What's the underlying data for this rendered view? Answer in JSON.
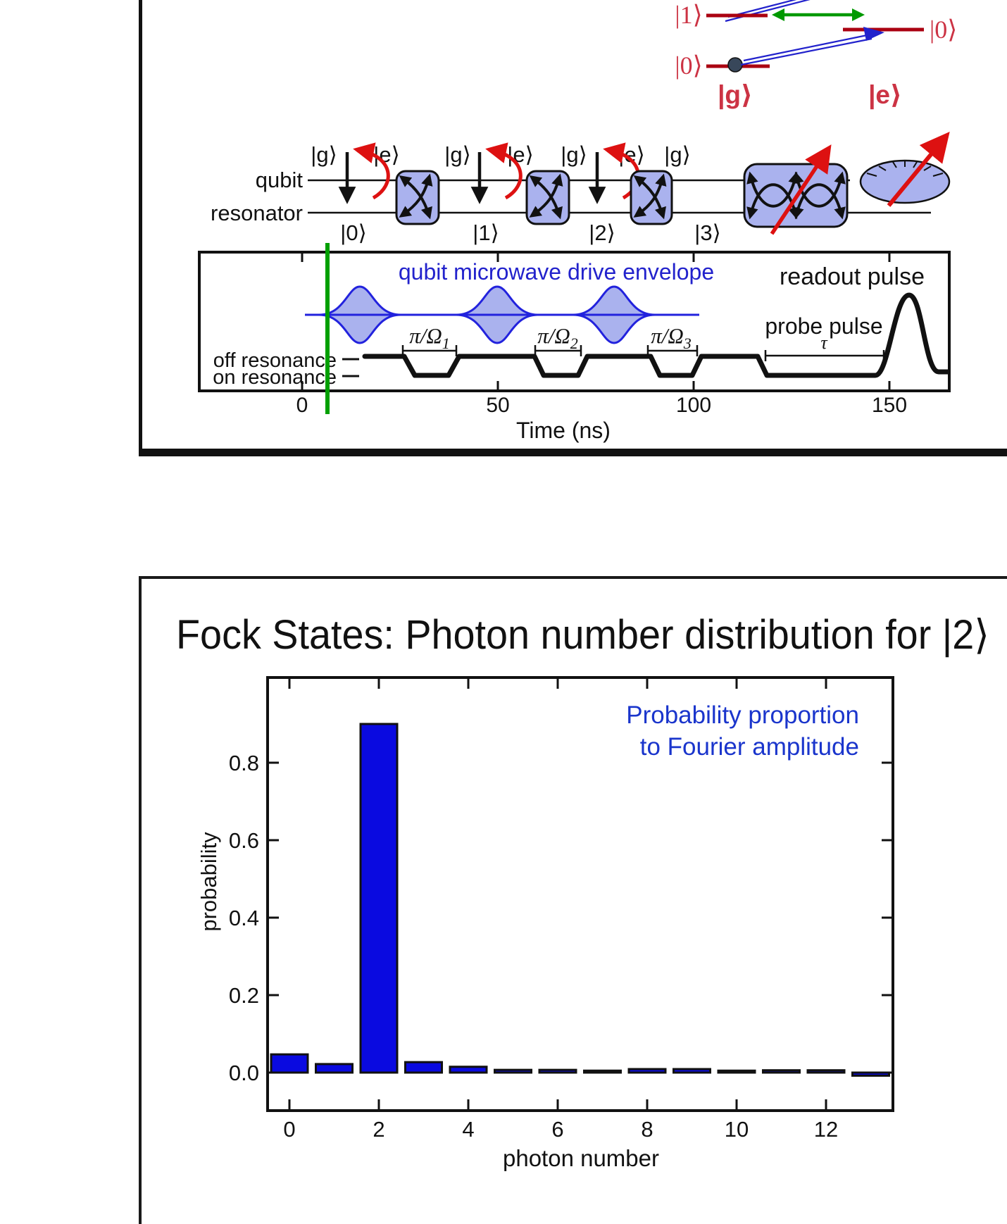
{
  "top_slide": {
    "energy_diagram": {
      "level1_label": "|1⟩",
      "level0_left_label": "|0⟩",
      "level0_right_label": "|0⟩",
      "ground_label": "|g⟩",
      "excited_label": "|e⟩"
    },
    "sequence": {
      "qubit_label": "qubit",
      "resonator_label": "resonator",
      "qubit_states": [
        "|g⟩",
        "|e⟩",
        "|g⟩",
        "|e⟩",
        "|g⟩",
        "|e⟩",
        "|g⟩"
      ],
      "resonator_states": [
        "|0⟩",
        "|1⟩",
        "|2⟩",
        "|3⟩"
      ]
    },
    "pulse_panel": {
      "drive_envelope_label": "qubit microwave drive envelope",
      "readout_pulse_label": "readout pulse",
      "probe_pulse_label": "probe pulse",
      "probe_tau_label": "τ",
      "pi_pulse_labels": [
        {
          "main": "π/Ω",
          "sub": "1"
        },
        {
          "main": "π/Ω",
          "sub": "2"
        },
        {
          "main": "π/Ω",
          "sub": "3"
        }
      ],
      "off_resonance_label": "off resonance",
      "on_resonance_label": "on resonance",
      "time_ticks": [
        "0",
        "50",
        "100",
        "150"
      ],
      "time_axis_label": "Time (ns)"
    }
  },
  "bottom_slide": {
    "title": "Fock States: Photon number distribution for |2⟩",
    "annotation_line1": "Probability proportion",
    "annotation_line2": "to Fourier amplitude"
  },
  "chart_data": {
    "type": "bar",
    "title": "Fock States: Photon number distribution for |2⟩",
    "xlabel": "photon number",
    "ylabel": "probability",
    "categories": [
      0,
      1,
      2,
      3,
      4,
      5,
      6,
      7,
      8,
      9,
      10,
      11,
      12,
      13
    ],
    "values": [
      0.047,
      0.022,
      0.9,
      0.027,
      0.015,
      0.007,
      0.007,
      0.005,
      0.009,
      0.009,
      0.005,
      0.006,
      0.006,
      -0.008
    ],
    "x_ticks": [
      0,
      2,
      4,
      6,
      8,
      10,
      12
    ],
    "y_ticks": [
      0.0,
      0.2,
      0.4,
      0.6,
      0.8
    ],
    "xlim": [
      -0.5,
      13.5
    ],
    "ylim": [
      -0.1,
      1.02
    ],
    "grid": false,
    "legend": "none",
    "bar_color": "#0a0ae0",
    "annotation": "Probability proportion to Fourier amplitude",
    "annotation_color": "#1a35cc"
  },
  "colors": {
    "level_line": "#aa0011",
    "state_label": "#cc3344",
    "blue_arrow": "#2222cc",
    "green_arrow": "#009900",
    "box_fill": "#aab2ee",
    "red_arrow": "#dd1111",
    "envelope_stroke": "#2222dd",
    "bar_blue": "#0a0ae0",
    "annotation_blue": "#1a35cc",
    "green_marker": "#00a000"
  }
}
